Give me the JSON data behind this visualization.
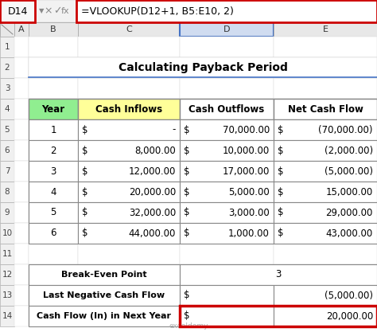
{
  "title": "Calculating Payback Period",
  "formula_bar_cell": "D14",
  "formula_bar_formula": "=VLOOKUP(D12+1, B5:E10, 2)",
  "col_headers": [
    "A",
    "B",
    "C",
    "D",
    "E"
  ],
  "row_numbers": [
    "1",
    "2",
    "3",
    "4",
    "5",
    "6",
    "7",
    "8",
    "9",
    "10",
    "11",
    "12",
    "13",
    "14"
  ],
  "table1_rows": [
    [
      "1",
      "$",
      "-",
      "$",
      "70,000.00",
      "$",
      "(70,000.00)"
    ],
    [
      "2",
      "$",
      "8,000.00",
      "$",
      "10,000.00",
      "$",
      "(2,000.00)"
    ],
    [
      "3",
      "$",
      "12,000.00",
      "$",
      "17,000.00",
      "$",
      "(5,000.00)"
    ],
    [
      "4",
      "$",
      "20,000.00",
      "$",
      "5,000.00",
      "$",
      "15,000.00"
    ],
    [
      "5",
      "$",
      "32,000.00",
      "$",
      "3,000.00",
      "$",
      "29,000.00"
    ],
    [
      "6",
      "$",
      "44,000.00",
      "$",
      "1,000.00",
      "$",
      "43,000.00"
    ]
  ],
  "table2_rows": [
    [
      "Break-Even Point",
      "",
      "3",
      ""
    ],
    [
      "Last Negative Cash Flow",
      "$",
      "",
      "(5,000.00)"
    ],
    [
      "Cash Flow (In) in Next Year",
      "$",
      "",
      "20,000.00"
    ]
  ],
  "year_header_color": "#90EE90",
  "inflows_header_color": "#FFFF99",
  "outflows_header_color": "#FFFFFF",
  "netcash_header_color": "#FFFFFF",
  "col_header_bg": "#D4D4D4",
  "row_header_bg": "#F0F0F0",
  "formula_bar_bg": "#FFFFFF",
  "cell_bg": "#FFFFFF",
  "border_color": "#AAAAAA",
  "table_border_color": "#888888",
  "red_border": "#CC0000",
  "watermark_color": "#B0B0B0",
  "title_underline_color": "#4472C4",
  "D_col_highlight": "#4472C4",
  "title_font_size": 10,
  "cell_font_size": 8
}
